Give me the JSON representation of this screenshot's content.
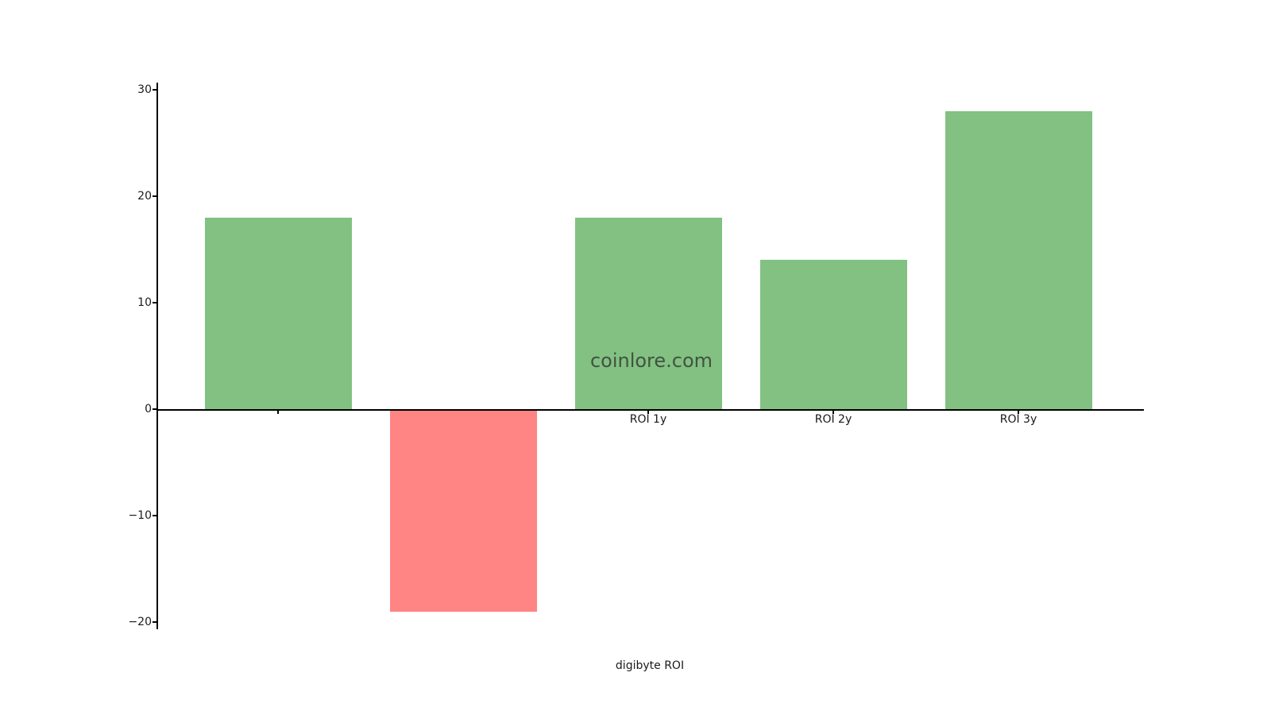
{
  "watermark": "coinlore.com",
  "chart_data": {
    "type": "bar",
    "title": "",
    "xlabel": "digibyte ROI",
    "ylabel": "",
    "categories": [
      "",
      "",
      "ROI 1y",
      "ROI 2y",
      "ROI 3y"
    ],
    "values": [
      18,
      -19,
      18,
      14,
      28
    ],
    "bar_colors": [
      "#82c182",
      "#ff8484",
      "#82c182",
      "#82c182",
      "#82c182"
    ],
    "yticks": [
      30,
      20,
      10,
      0,
      -10,
      -20
    ],
    "ytick_labels": [
      "30",
      "20",
      "10",
      "0",
      "−10",
      "−20"
    ],
    "ylim": [
      -20.7,
      30.6
    ],
    "grid": false,
    "legend": null,
    "colors": {
      "positive": "#82c182",
      "negative": "#ff8484",
      "axis": "#000000",
      "tick_text": "#1a1a1a",
      "watermark_text": "#414e41"
    }
  }
}
